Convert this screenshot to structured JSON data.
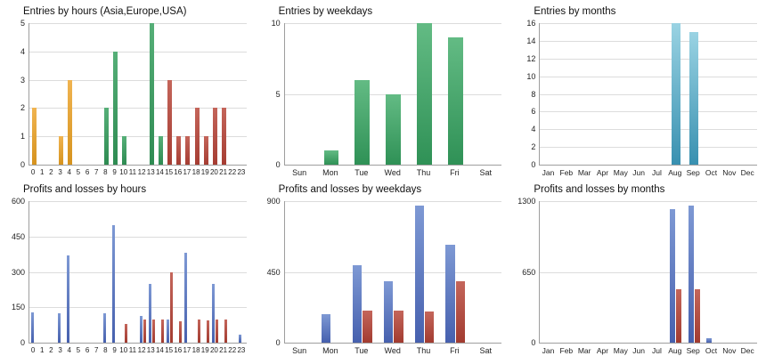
{
  "page": {
    "background": "#ffffff"
  },
  "chart_data": [
    {
      "id": "entries-by-hours",
      "title": "Entries by hours (Asia,Europe,USA)",
      "type": "bar",
      "mode": "overlay",
      "categories": [
        "0",
        "1",
        "2",
        "3",
        "4",
        "5",
        "6",
        "7",
        "8",
        "9",
        "10",
        "11",
        "12",
        "13",
        "14",
        "15",
        "16",
        "17",
        "18",
        "19",
        "20",
        "21",
        "22",
        "23"
      ],
      "series": [
        {
          "name": "Asia",
          "color_top": "#F0B451",
          "color_bottom": "#D6931E",
          "values": [
            2,
            0,
            0,
            1,
            3,
            0,
            0,
            0,
            0,
            0,
            0,
            0,
            0,
            0,
            0,
            0,
            0,
            0,
            0,
            0,
            0,
            0,
            0,
            0
          ]
        },
        {
          "name": "Europe",
          "color_top": "#56AF78",
          "color_bottom": "#2E8B52",
          "values": [
            0,
            0,
            0,
            0,
            0,
            0,
            0,
            0,
            2,
            4,
            1,
            0,
            0,
            5,
            1,
            0,
            0,
            0,
            0,
            0,
            0,
            0,
            0,
            0
          ]
        },
        {
          "name": "USA",
          "color_top": "#C4655A",
          "color_bottom": "#A63D33",
          "values": [
            0,
            0,
            0,
            0,
            0,
            0,
            0,
            0,
            0,
            0,
            0,
            0,
            0,
            0,
            0,
            3,
            1,
            1,
            2,
            1,
            2,
            2,
            0,
            0
          ]
        }
      ],
      "xlabel": "",
      "ylabel": "",
      "ylim": [
        0,
        5
      ],
      "yticks": [
        0,
        1,
        2,
        3,
        4,
        5
      ],
      "grid": true,
      "legend": "none"
    },
    {
      "id": "entries-by-weekdays",
      "title": "Entries by weekdays",
      "type": "bar",
      "mode": "single",
      "categories": [
        "Sun",
        "Mon",
        "Tue",
        "Wed",
        "Thu",
        "Fri",
        "Sat"
      ],
      "series": [
        {
          "name": "Entries",
          "color_top": "#63BB84",
          "color_bottom": "#2F9156",
          "values": [
            0,
            1,
            6,
            5,
            10,
            9,
            0
          ]
        }
      ],
      "xlabel": "",
      "ylabel": "",
      "ylim": [
        0,
        10
      ],
      "yticks": [
        0,
        5,
        10
      ],
      "grid": true,
      "legend": "none"
    },
    {
      "id": "entries-by-months",
      "title": "Entries by months",
      "type": "bar",
      "mode": "single",
      "categories": [
        "Jan",
        "Feb",
        "Mar",
        "Apr",
        "May",
        "Jun",
        "Jul",
        "Aug",
        "Sep",
        "Oct",
        "Nov",
        "Dec"
      ],
      "series": [
        {
          "name": "Entries",
          "color_top": "#9AD3E3",
          "color_bottom": "#3890B0",
          "values": [
            0,
            0,
            0,
            0,
            0,
            0,
            0,
            16,
            15,
            0,
            0,
            0
          ]
        }
      ],
      "xlabel": "",
      "ylabel": "",
      "ylim": [
        0,
        16
      ],
      "yticks": [
        0,
        2,
        4,
        6,
        8,
        10,
        12,
        14,
        16
      ],
      "grid": true,
      "legend": "none"
    },
    {
      "id": "profits-losses-by-hours",
      "title": "Profits and losses by hours",
      "type": "bar",
      "mode": "pair",
      "categories": [
        "0",
        "1",
        "2",
        "3",
        "4",
        "5",
        "6",
        "7",
        "8",
        "9",
        "10",
        "11",
        "12",
        "13",
        "14",
        "15",
        "16",
        "17",
        "18",
        "19",
        "20",
        "21",
        "22",
        "23"
      ],
      "series": [
        {
          "name": "Profit",
          "color_top": "#7E99D4",
          "color_bottom": "#4660AE",
          "values": [
            130,
            0,
            0,
            125,
            370,
            0,
            0,
            0,
            125,
            500,
            0,
            0,
            115,
            250,
            0,
            100,
            0,
            380,
            0,
            0,
            250,
            0,
            0,
            35
          ]
        },
        {
          "name": "Loss",
          "color_top": "#C4665B",
          "color_bottom": "#A23B30",
          "values": [
            0,
            0,
            0,
            0,
            0,
            0,
            0,
            0,
            0,
            0,
            80,
            0,
            100,
            100,
            100,
            300,
            90,
            0,
            100,
            95,
            100,
            100,
            0,
            0
          ]
        }
      ],
      "xlabel": "",
      "ylabel": "",
      "ylim": [
        0,
        600
      ],
      "yticks": [
        0,
        150,
        300,
        450,
        600
      ],
      "grid": true,
      "legend": "none"
    },
    {
      "id": "profits-losses-by-weekdays",
      "title": "Profits and losses by weekdays",
      "type": "bar",
      "mode": "pair",
      "categories": [
        "Sun",
        "Mon",
        "Tue",
        "Wed",
        "Thu",
        "Fri",
        "Sat"
      ],
      "series": [
        {
          "name": "Profit",
          "color_top": "#7E99D4",
          "color_bottom": "#4660AE",
          "values": [
            0,
            180,
            490,
            390,
            870,
            620,
            0
          ]
        },
        {
          "name": "Loss",
          "color_top": "#C4665B",
          "color_bottom": "#A23B30",
          "values": [
            0,
            0,
            205,
            205,
            200,
            390,
            0
          ]
        }
      ],
      "xlabel": "",
      "ylabel": "",
      "ylim": [
        0,
        900
      ],
      "yticks": [
        0,
        450,
        900
      ],
      "grid": true,
      "legend": "none"
    },
    {
      "id": "profits-losses-by-months",
      "title": "Profits and losses by months",
      "type": "bar",
      "mode": "pair",
      "categories": [
        "Jan",
        "Feb",
        "Mar",
        "Apr",
        "May",
        "Jun",
        "Jul",
        "Aug",
        "Sep",
        "Oct",
        "Nov",
        "Dec"
      ],
      "series": [
        {
          "name": "Profit",
          "color_top": "#7E99D4",
          "color_bottom": "#4660AE",
          "values": [
            0,
            0,
            0,
            0,
            0,
            0,
            0,
            1230,
            1260,
            45,
            0,
            0
          ]
        },
        {
          "name": "Loss",
          "color_top": "#C4665B",
          "color_bottom": "#A23B30",
          "values": [
            0,
            0,
            0,
            0,
            0,
            0,
            0,
            490,
            490,
            0,
            0,
            0
          ]
        }
      ],
      "xlabel": "",
      "ylabel": "",
      "ylim": [
        0,
        1300
      ],
      "yticks": [
        0,
        650,
        1300
      ],
      "grid": true,
      "legend": "none"
    }
  ]
}
